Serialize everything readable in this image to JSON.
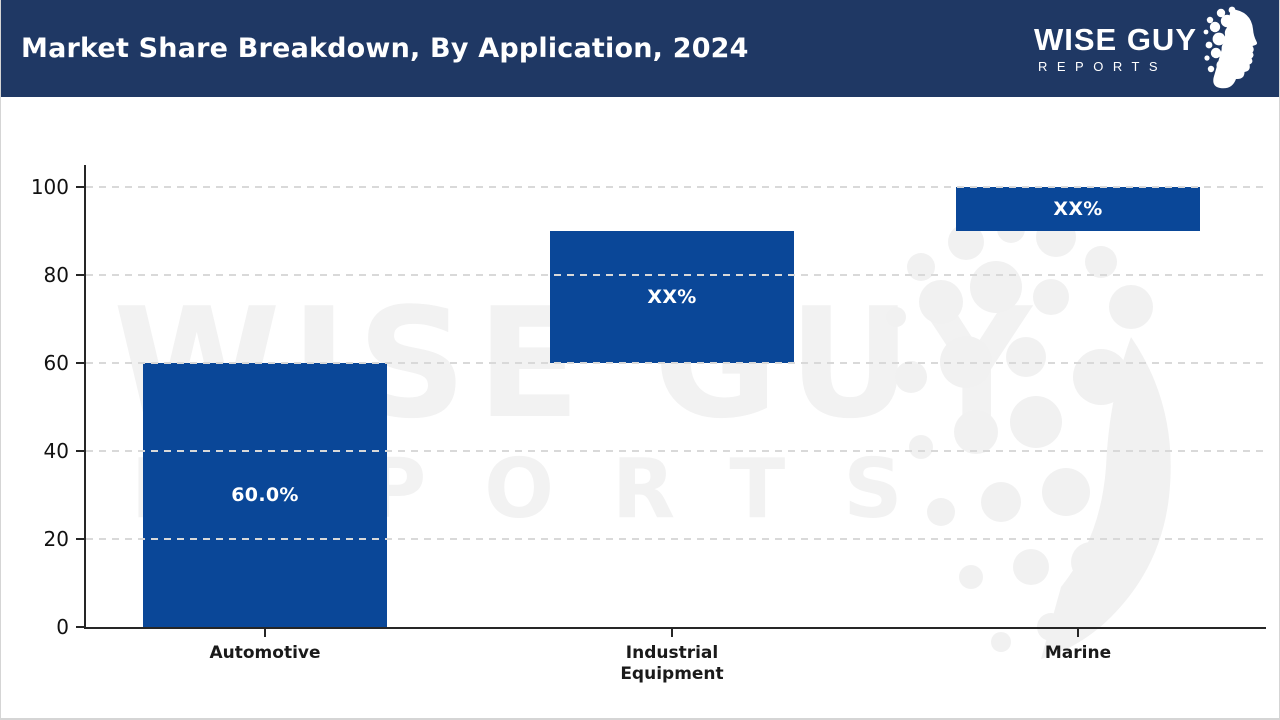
{
  "header": {
    "title": "Market Share Breakdown, By Application, 2024",
    "logo": {
      "line1": "WISE GUY",
      "line2": "REPORTS"
    }
  },
  "watermark": {
    "line1": "WISE GUY",
    "line2": "REPORTS"
  },
  "colors": {
    "header_bg": "#1f3864",
    "bar_fill": "#0a4798",
    "bar_label_text": "#ffffff",
    "grid_line": "#d9d9d9",
    "axis_line": "#262626",
    "tick_text": "#111111",
    "watermark": "#f2f2f2",
    "page_border": "#d5d5d5"
  },
  "chart_data": {
    "type": "bar",
    "subtype": "waterfall-floating-bars",
    "title": "Market Share Breakdown, By Application, 2024",
    "categories": [
      "Automotive",
      "Industrial\nEquipment",
      "Marine"
    ],
    "bars": [
      {
        "category": "Automotive",
        "start": 0,
        "end": 60,
        "value": 60,
        "label": "60.0%"
      },
      {
        "category": "Industrial\nEquipment",
        "start": 60,
        "end": 90,
        "value": 30,
        "label": "XX%"
      },
      {
        "category": "Marine",
        "start": 90,
        "end": 100,
        "value": 10,
        "label": "XX%"
      }
    ],
    "xlabel": "",
    "ylabel": "",
    "ylim": [
      0,
      100
    ],
    "yticks": [
      0,
      20,
      40,
      60,
      80,
      100
    ],
    "grid": "horizontal-dashed",
    "legend": "none"
  }
}
